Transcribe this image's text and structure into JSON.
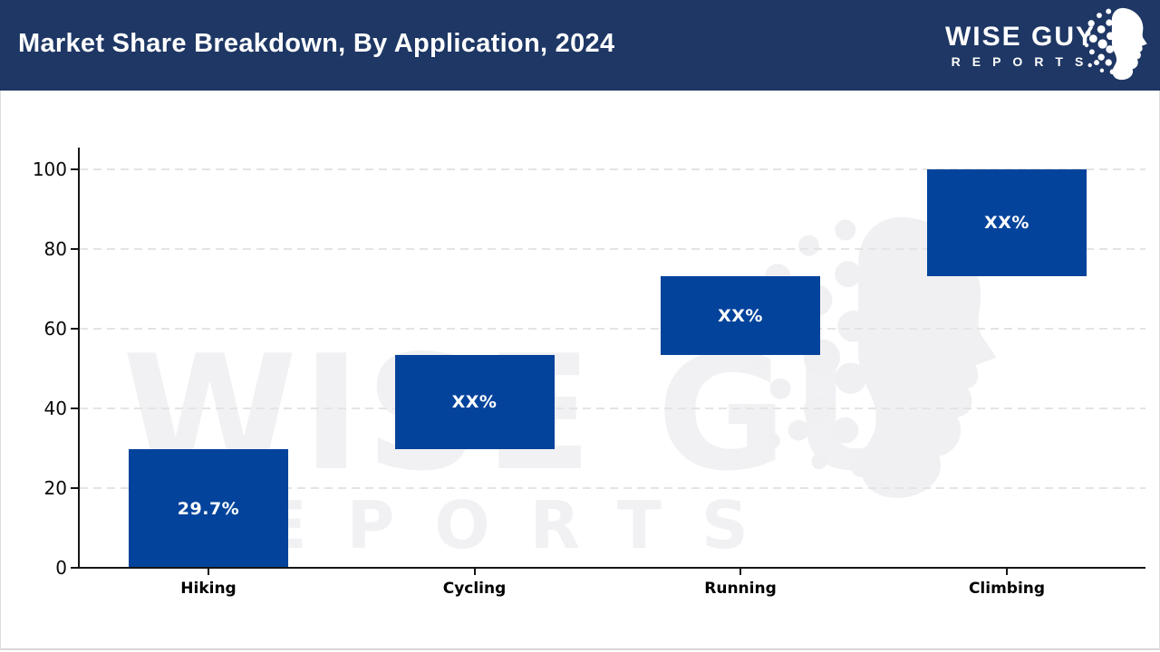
{
  "header": {
    "title": "Market Share Breakdown, By Application, 2024",
    "logo_line1": "WISE GUY",
    "logo_line2": "REPORTS"
  },
  "watermark": {
    "line1": "WISE GU",
    "line2": "REPORTS"
  },
  "colors": {
    "header_bg": "#1e3764",
    "bar": "#04439b",
    "gridline": "#e4e4e4",
    "axis": "#161616",
    "bar_label": "#ffffff"
  },
  "chart_data": {
    "type": "bar",
    "subtype": "waterfall-floating-bars",
    "title": "Market Share Breakdown, By Application, 2024",
    "xlabel": "",
    "ylabel": "",
    "categories": [
      "Hiking",
      "Cycling",
      "Running",
      "Climbing"
    ],
    "bars": [
      {
        "category": "Hiking",
        "start": 0,
        "end": 29.7,
        "label": "29.7%"
      },
      {
        "category": "Cycling",
        "start": 29.7,
        "end": 53.3,
        "label": "XX%"
      },
      {
        "category": "Running",
        "start": 53.3,
        "end": 73.1,
        "label": "XX%"
      },
      {
        "category": "Climbing",
        "start": 73.1,
        "end": 100,
        "label": "XX%"
      }
    ],
    "yticks": [
      0,
      20,
      40,
      60,
      80,
      100
    ],
    "ylim": [
      0,
      105.5
    ],
    "grid": true,
    "grid_style": "dashed",
    "legend": false
  }
}
